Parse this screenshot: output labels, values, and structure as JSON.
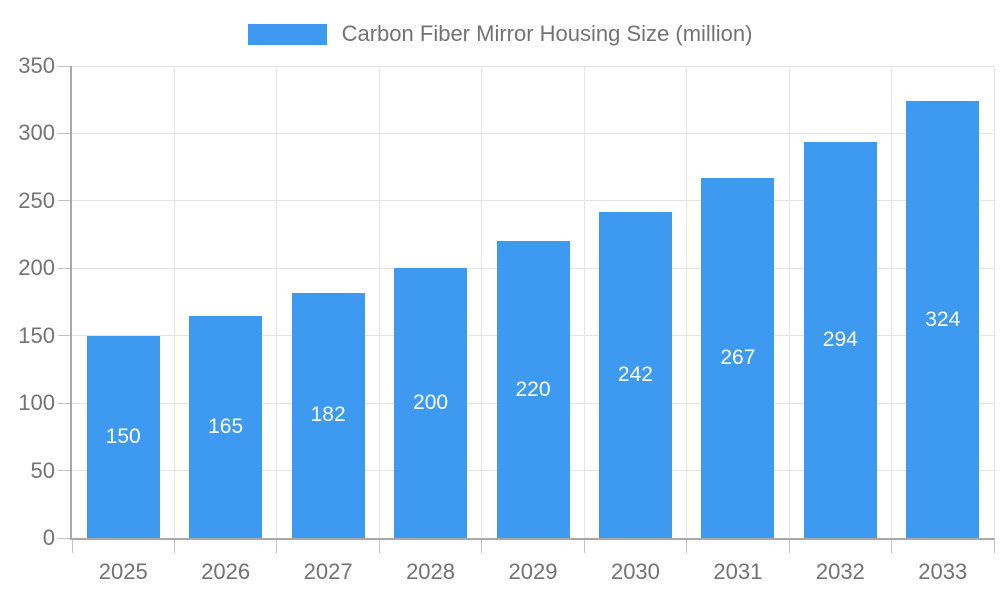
{
  "colors": {
    "bar": "#3D9AF0",
    "grid": "#e5e5e5",
    "axis": "#a8a8a8",
    "tick": "#c2c2c2",
    "label_text": "#737373",
    "bar_label": "#ffffff",
    "background": "#ffffff"
  },
  "chart_data": {
    "type": "bar",
    "title": "Carbon Fiber Mirror Housing Size (million)",
    "categories": [
      "2025",
      "2026",
      "2027",
      "2028",
      "2029",
      "2030",
      "2031",
      "2032",
      "2033"
    ],
    "values": [
      150,
      165,
      182,
      200,
      220,
      242,
      267,
      294,
      324
    ],
    "series": [
      {
        "name": "Carbon Fiber Mirror Housing Size (million)",
        "values": [
          150,
          165,
          182,
          200,
          220,
          242,
          267,
          294,
          324
        ]
      }
    ],
    "xlabel": "",
    "ylabel": "",
    "ylim": [
      0,
      350
    ],
    "yticks": [
      0,
      50,
      100,
      150,
      200,
      250,
      300,
      350
    ],
    "grid": true,
    "legend_position": "top",
    "bar_value_labels_inside": true
  }
}
